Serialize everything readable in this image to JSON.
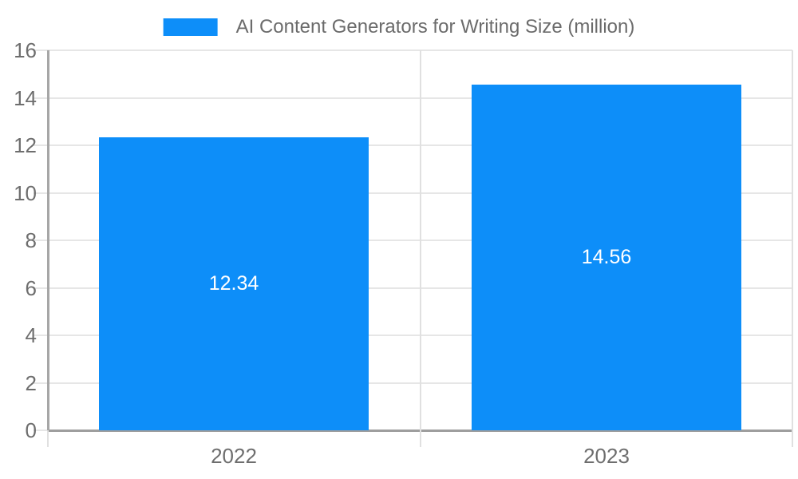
{
  "legend": {
    "label": "AI Content Generators for Writing Size (million)"
  },
  "chart_data": {
    "type": "bar",
    "title": "AI Content Generators for Writing Size (million)",
    "categories": [
      "2022",
      "2023"
    ],
    "series": [
      {
        "name": "AI Content Generators for Writing Size (million)",
        "values": [
          12.34,
          14.56
        ]
      }
    ],
    "values": [
      12.34,
      14.56
    ],
    "value_labels": [
      "12.34",
      "14.56"
    ],
    "xlabel": "",
    "ylabel": "",
    "ylim": [
      0,
      16
    ],
    "yticks": [
      0,
      2,
      4,
      6,
      8,
      10,
      12,
      14,
      16
    ],
    "ytick_labels": [
      "0",
      "2",
      "4",
      "6",
      "8",
      "10",
      "12",
      "14",
      "16"
    ],
    "grid": true,
    "legend_position": "top",
    "colors": {
      "bar": "#0d8ef9",
      "gridline": "#e6e6e6",
      "boundary_line": "#e0e0e0",
      "axis_line": "#a6a6a6",
      "baseline": "#9e9e9e",
      "tick_text": "#6e6e6e",
      "legend_text": "#6b6b6b",
      "value_label_text": "#ffffff"
    }
  }
}
